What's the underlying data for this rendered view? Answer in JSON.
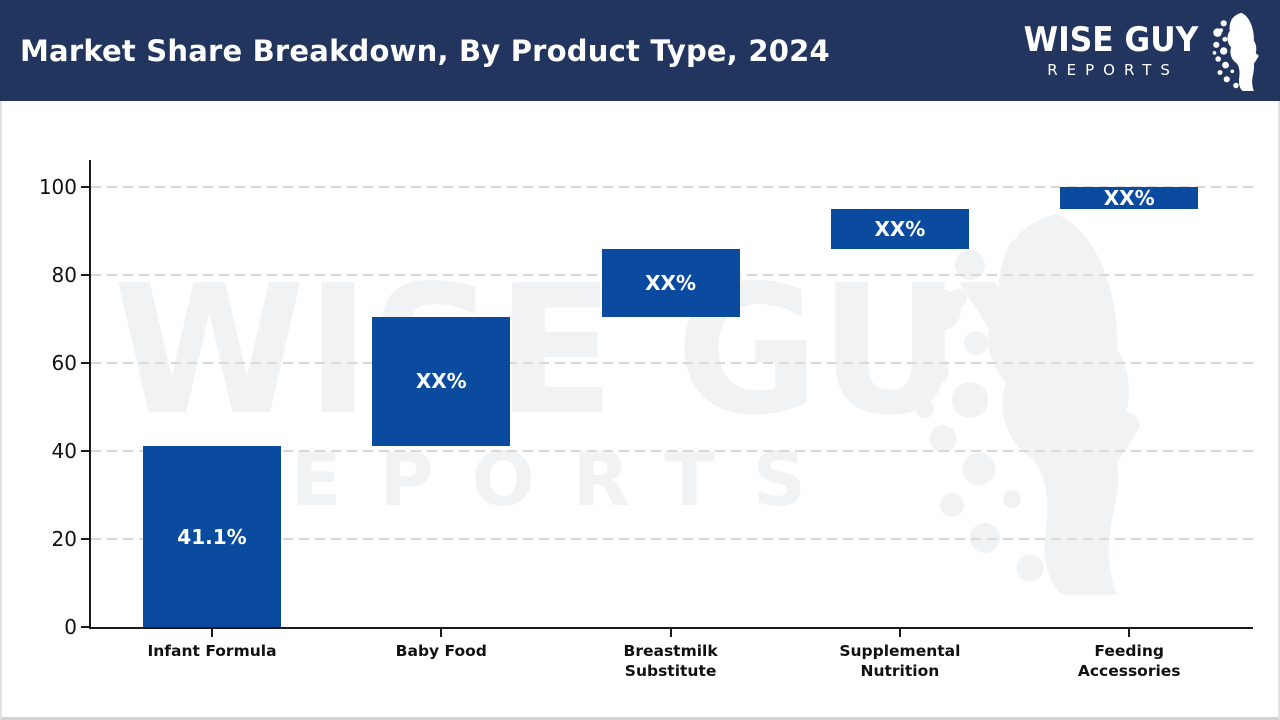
{
  "header": {
    "title": "Market Share Breakdown, By Product Type, 2024",
    "logo": {
      "line1": "WISE GUY",
      "line2": "REPORTS"
    }
  },
  "watermark": {
    "line1": "WISE GUY",
    "line2": "REPORTS"
  },
  "chart_data": {
    "type": "bar",
    "subtype": "waterfall",
    "title": "Market Share Breakdown, By Product Type, 2024",
    "xlabel": "",
    "ylabel": "",
    "ylim": [
      0,
      105
    ],
    "y_ticks": [
      0,
      20,
      40,
      60,
      80,
      100
    ],
    "grid": "horizontal-dashed",
    "legend": "none",
    "categories": [
      "Infant Formula",
      "Baby Food",
      "Breastmilk Substitute",
      "Supplemental Nutrition",
      "Feeding Accessories"
    ],
    "category_label_lines": [
      [
        "Infant Formula"
      ],
      [
        "Baby Food"
      ],
      [
        "Breastmilk",
        "Substitute"
      ],
      [
        "Supplemental",
        "Nutrition"
      ],
      [
        "Feeding",
        "Accessories"
      ]
    ],
    "segments": [
      {
        "category": "Infant Formula",
        "start": 0,
        "end": 41.1,
        "value_label": "41.1%"
      },
      {
        "category": "Baby Food",
        "start": 41.1,
        "end": 70.5,
        "value_label": "XX%"
      },
      {
        "category": "Breastmilk Substitute",
        "start": 70.5,
        "end": 86.0,
        "value_label": "XX%"
      },
      {
        "category": "Supplemental Nutrition",
        "start": 86.0,
        "end": 95.0,
        "value_label": "XX%"
      },
      {
        "category": "Feeding Accessories",
        "start": 95.0,
        "end": 100.0,
        "value_label": "XX%"
      }
    ],
    "colors": {
      "bar": "#0a4a9f",
      "bar_label": "#ffffff",
      "axis": "#1a1a1a",
      "grid": "#d8d8d8",
      "tick_text": "#111111"
    }
  },
  "colors": {
    "header_bg": "#21355f",
    "header_text": "#ffffff",
    "watermark": "#f1f2f4",
    "frame_border": "#e1e1e1"
  }
}
